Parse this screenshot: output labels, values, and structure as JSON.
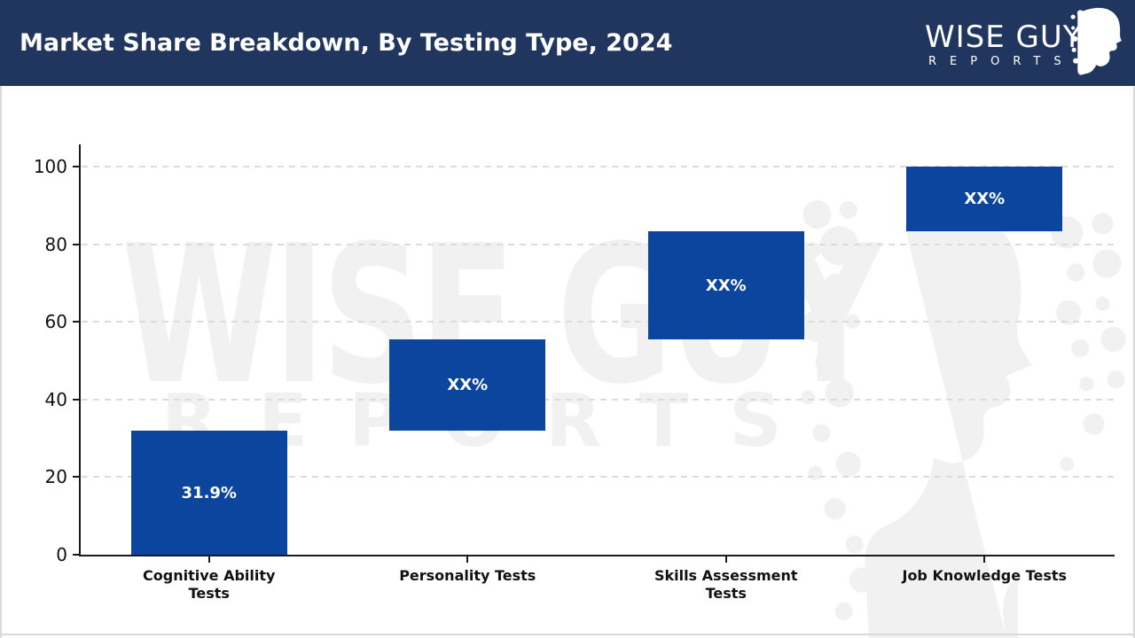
{
  "header": {
    "title": "Market Share Breakdown, By Testing Type, 2024",
    "bg_color": "#20365f",
    "logo": {
      "line1": "WISE GUY",
      "line2": "REPORTS"
    }
  },
  "watermark": {
    "line1": "WISE GUY",
    "line2": "REPORTS"
  },
  "chart_data": {
    "type": "bar",
    "subtype": "floating-waterfall",
    "title": "Market Share Breakdown, By Testing Type, 2024",
    "categories": [
      "Cognitive Ability Tests",
      "Personality Tests",
      "Skills Assessment Tests",
      "Job Knowledge Tests"
    ],
    "segments": [
      {
        "category": "Cognitive Ability Tests",
        "start": 0,
        "end": 31.9,
        "value": 31.9,
        "label": "31.9%"
      },
      {
        "category": "Personality Tests",
        "start": 31.9,
        "end": 55.5,
        "value": 23.6,
        "label": "XX%"
      },
      {
        "category": "Skills Assessment Tests",
        "start": 55.5,
        "end": 83.3,
        "value": 27.8,
        "label": "XX%"
      },
      {
        "category": "Job Knowledge Tests",
        "start": 83.3,
        "end": 100,
        "value": 16.7,
        "label": "XX%"
      }
    ],
    "yticks": [
      0,
      20,
      40,
      60,
      80,
      100
    ],
    "ylim": [
      0,
      100
    ],
    "xlabel": "",
    "ylabel": "",
    "grid": "horizontal-dashed",
    "legend": "none",
    "bar_color": "#0b459d",
    "bar_label_color": "#ffffff"
  }
}
